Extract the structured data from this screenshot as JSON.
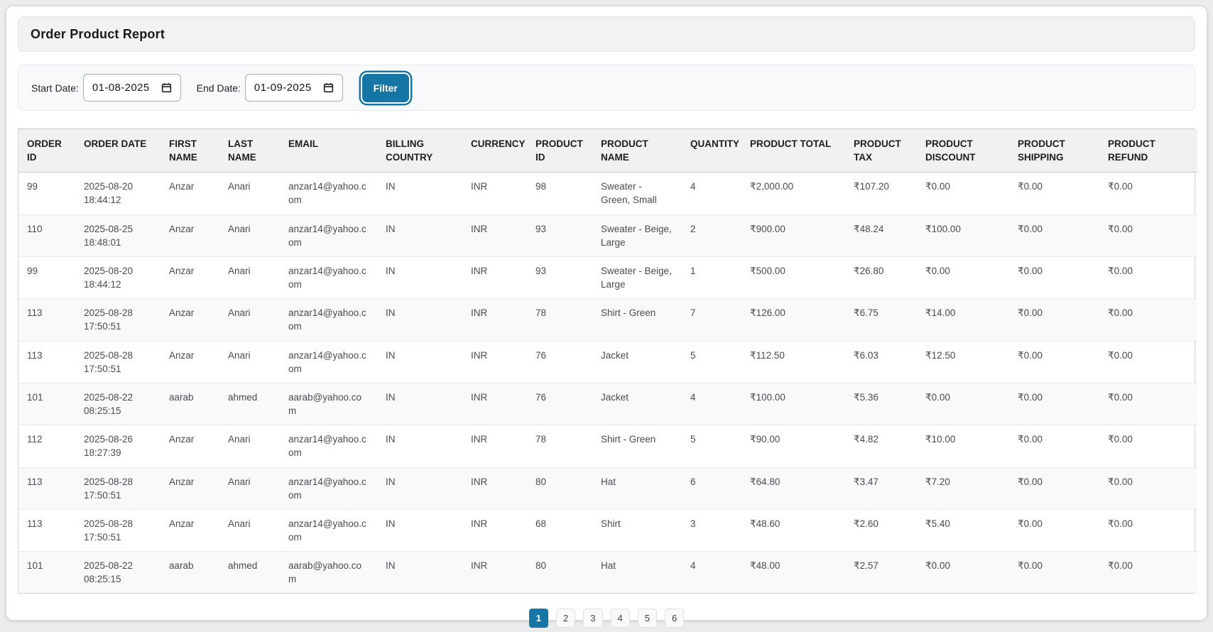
{
  "page": {
    "title": "Order Product Report"
  },
  "filters": {
    "start_label": "Start Date:",
    "start_value": "01-08-2025",
    "end_label": "End Date:",
    "end_value": "01-09-2025",
    "button_label": "Filter"
  },
  "table": {
    "columns": [
      "ORDER ID",
      "ORDER DATE",
      "FIRST NAME",
      "LAST NAME",
      "EMAIL",
      "BILLING COUNTRY",
      "CURRENCY",
      "PRODUCT ID",
      "PRODUCT NAME",
      "QUANTITY",
      "PRODUCT TOTAL",
      "PRODUCT TAX",
      "PRODUCT DISCOUNT",
      "PRODUCT SHIPPING",
      "PRODUCT REFUND"
    ],
    "rows": [
      [
        "99",
        "2025-08-20 18:44:12",
        "Anzar",
        "Anari",
        "anzar14@yahoo.com",
        "IN",
        "INR",
        "98",
        "Sweater - Green, Small",
        "4",
        "₹2,000.00",
        "₹107.20",
        "₹0.00",
        "₹0.00",
        "₹0.00"
      ],
      [
        "110",
        "2025-08-25 18:48:01",
        "Anzar",
        "Anari",
        "anzar14@yahoo.com",
        "IN",
        "INR",
        "93",
        "Sweater - Beige, Large",
        "2",
        "₹900.00",
        "₹48.24",
        "₹100.00",
        "₹0.00",
        "₹0.00"
      ],
      [
        "99",
        "2025-08-20 18:44:12",
        "Anzar",
        "Anari",
        "anzar14@yahoo.com",
        "IN",
        "INR",
        "93",
        "Sweater - Beige, Large",
        "1",
        "₹500.00",
        "₹26.80",
        "₹0.00",
        "₹0.00",
        "₹0.00"
      ],
      [
        "113",
        "2025-08-28 17:50:51",
        "Anzar",
        "Anari",
        "anzar14@yahoo.com",
        "IN",
        "INR",
        "78",
        "Shirt - Green",
        "7",
        "₹126.00",
        "₹6.75",
        "₹14.00",
        "₹0.00",
        "₹0.00"
      ],
      [
        "113",
        "2025-08-28 17:50:51",
        "Anzar",
        "Anari",
        "anzar14@yahoo.com",
        "IN",
        "INR",
        "76",
        "Jacket",
        "5",
        "₹112.50",
        "₹6.03",
        "₹12.50",
        "₹0.00",
        "₹0.00"
      ],
      [
        "101",
        "2025-08-22 08:25:15",
        "aarab",
        "ahmed",
        "aarab@yahoo.com",
        "IN",
        "INR",
        "76",
        "Jacket",
        "4",
        "₹100.00",
        "₹5.36",
        "₹0.00",
        "₹0.00",
        "₹0.00"
      ],
      [
        "112",
        "2025-08-26 18:27:39",
        "Anzar",
        "Anari",
        "anzar14@yahoo.com",
        "IN",
        "INR",
        "78",
        "Shirt - Green",
        "5",
        "₹90.00",
        "₹4.82",
        "₹10.00",
        "₹0.00",
        "₹0.00"
      ],
      [
        "113",
        "2025-08-28 17:50:51",
        "Anzar",
        "Anari",
        "anzar14@yahoo.com",
        "IN",
        "INR",
        "80",
        "Hat",
        "6",
        "₹64.80",
        "₹3.47",
        "₹7.20",
        "₹0.00",
        "₹0.00"
      ],
      [
        "113",
        "2025-08-28 17:50:51",
        "Anzar",
        "Anari",
        "anzar14@yahoo.com",
        "IN",
        "INR",
        "68",
        "Shirt",
        "3",
        "₹48.60",
        "₹2.60",
        "₹5.40",
        "₹0.00",
        "₹0.00"
      ],
      [
        "101",
        "2025-08-22 08:25:15",
        "aarab",
        "ahmed",
        "aarab@yahoo.com",
        "IN",
        "INR",
        "80",
        "Hat",
        "4",
        "₹48.00",
        "₹2.57",
        "₹0.00",
        "₹0.00",
        "₹0.00"
      ]
    ]
  },
  "pagination": {
    "pages": [
      "1",
      "2",
      "3",
      "4",
      "5",
      "6"
    ],
    "active": "1"
  },
  "colors": {
    "accent": "#1576a6",
    "header_bg": "#f1f1f1",
    "stripe_bg": "#f9f9f9"
  }
}
